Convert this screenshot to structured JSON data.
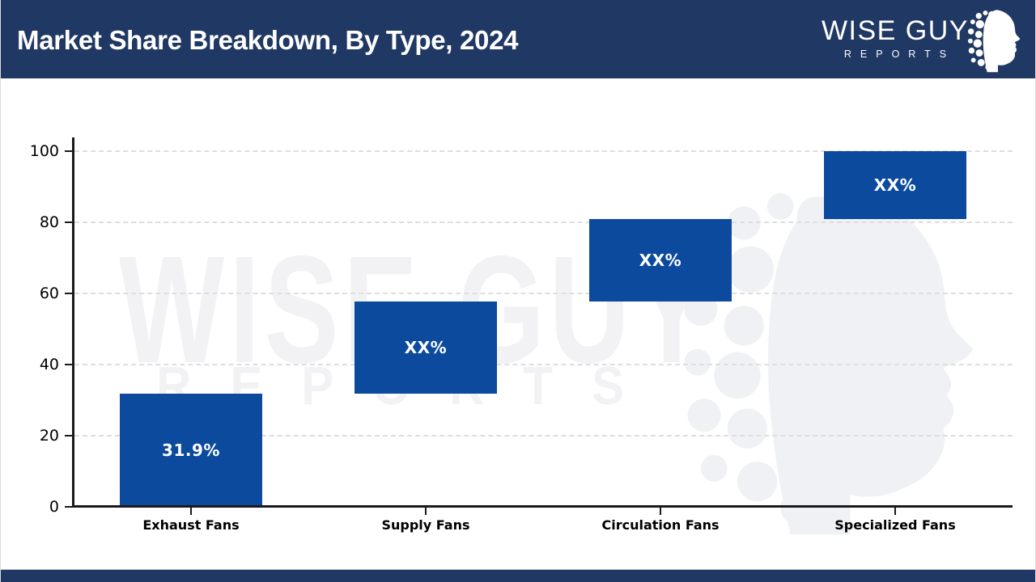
{
  "header": {
    "title": "Market Share Breakdown, By Type, 2024",
    "logo": {
      "line1": "WISE GUY",
      "line2": "REPORTS"
    }
  },
  "watermark": {
    "line1": "WISE GUY",
    "line2": "REPORTS"
  },
  "colors": {
    "header_bg": "#203864",
    "footer_bg": "#203864",
    "bar": "#0c4a9e",
    "bar_label": "#ffffff",
    "grid": "#dedede",
    "axis": "#1a1a1a",
    "watermark": "#f2f2f5"
  },
  "chart_data": {
    "type": "bar",
    "subtype": "waterfall",
    "title": "Market Share Breakdown, By Type, 2024",
    "categories": [
      "Exhaust Fans",
      "Supply Fans",
      "Circulation Fans",
      "Specialized Fans"
    ],
    "segments": [
      {
        "category": "Exhaust Fans",
        "start": 0,
        "end": 31.9,
        "value": 31.9,
        "label": "31.9%"
      },
      {
        "category": "Supply Fans",
        "start": 31.9,
        "end": 57.7,
        "value": 25.8,
        "label": "XX%"
      },
      {
        "category": "Circulation Fans",
        "start": 57.7,
        "end": 80.9,
        "value": 23.2,
        "label": "XX%"
      },
      {
        "category": "Specialized Fans",
        "start": 80.9,
        "end": 100,
        "value": 19.1,
        "label": "XX%"
      }
    ],
    "xlabel": "",
    "ylabel": "",
    "ylim": [
      0,
      105
    ],
    "yticks": [
      0,
      20,
      40,
      60,
      80,
      100
    ],
    "grid": "horizontal-dashed",
    "legend": "none"
  }
}
